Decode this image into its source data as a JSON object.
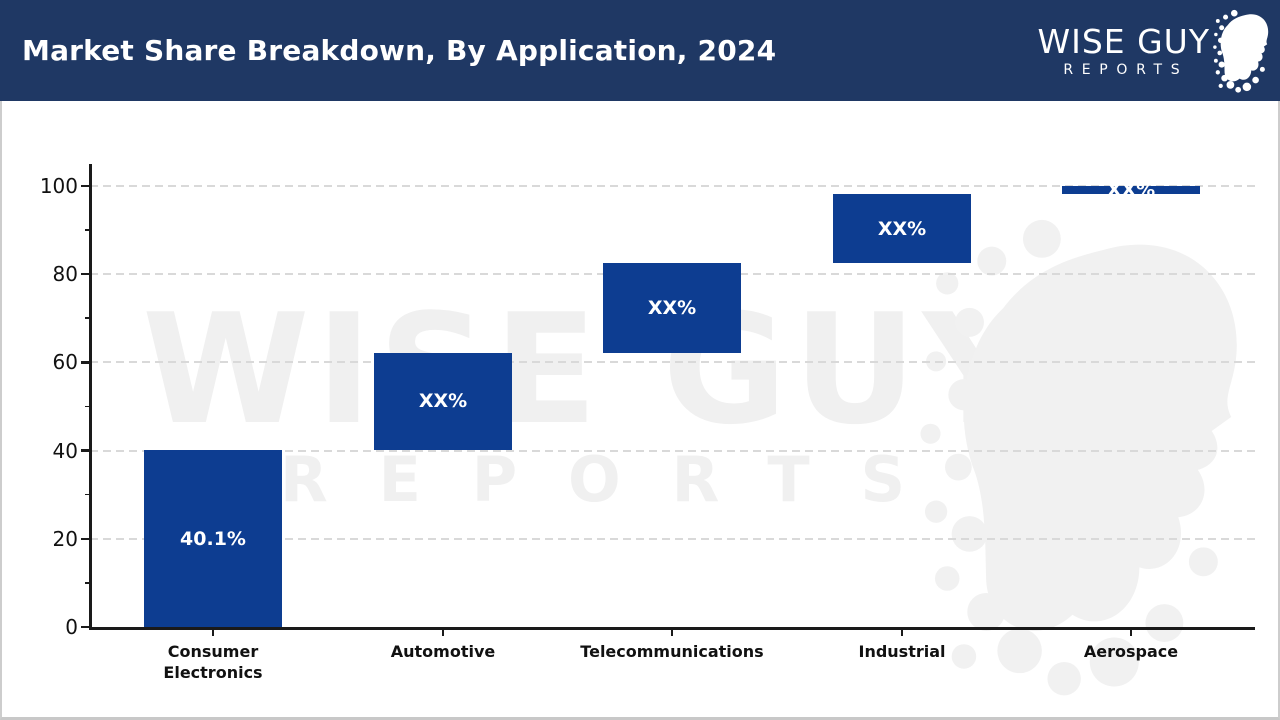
{
  "header": {
    "title": "Market Share Breakdown, By Application, 2024",
    "logo": {
      "line1": "WISE GUY",
      "line2": "REPORTS"
    }
  },
  "watermark": {
    "line1": "WISE GUY",
    "line2": "REPORTS"
  },
  "colors": {
    "header_bg": "#1f3864",
    "bar": "#0d3d91",
    "grid": "#d9d9d9",
    "axis": "#1a1a1a",
    "watermark": "#f0f0f0"
  },
  "chart_data": {
    "type": "bar",
    "subtype": "waterfall",
    "title": "Market Share Breakdown, By Application, 2024",
    "xlabel": "",
    "ylabel": "",
    "categories": [
      "Consumer Electronics",
      "Automotive",
      "Telecommunications",
      "Industrial",
      "Aerospace"
    ],
    "segments": [
      {
        "category": "Consumer Electronics",
        "start": 0,
        "end": 40.1,
        "value": 40.1,
        "label": "40.1%"
      },
      {
        "category": "Automotive",
        "start": 40.1,
        "end": 62.2,
        "value": 22.1,
        "label": "XX%"
      },
      {
        "category": "Telecommunications",
        "start": 62.2,
        "end": 82.5,
        "value": 20.3,
        "label": "XX%"
      },
      {
        "category": "Industrial",
        "start": 82.5,
        "end": 98.1,
        "value": 15.6,
        "label": "XX%"
      },
      {
        "category": "Aerospace",
        "start": 98.1,
        "end": 100,
        "value": 1.9,
        "label": "XX%"
      }
    ],
    "ylim": [
      0,
      105
    ],
    "yticks": [
      0,
      20,
      40,
      60,
      80,
      100
    ],
    "minor_yticks": [
      10,
      30,
      50,
      70,
      90
    ],
    "gridlines_at": [
      20,
      40,
      60,
      80,
      100
    ],
    "grid": true,
    "legend": false
  }
}
